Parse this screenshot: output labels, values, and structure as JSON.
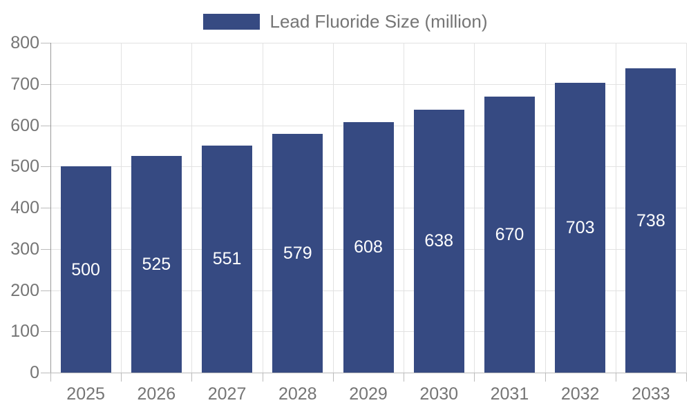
{
  "legend": {
    "label": "Lead Fluoride Size (million)"
  },
  "colors": {
    "bar": "#364A82",
    "bar_label": "#FFFFFF",
    "axis_text": "#757575",
    "grid": "#E2E2E2",
    "axis_line_y": "#999999",
    "axis_line_x": "#BBBBBB",
    "tick": "#BBBBBB",
    "background": "#FFFFFF"
  },
  "chart_data": {
    "type": "bar",
    "title": "",
    "categories": [
      "2025",
      "2026",
      "2027",
      "2028",
      "2029",
      "2030",
      "2031",
      "2032",
      "2033"
    ],
    "series": [
      {
        "name": "Lead Fluoride Size (million)",
        "values": [
          500,
          525,
          551,
          579,
          608,
          638,
          670,
          703,
          738
        ]
      }
    ],
    "xlabel": "",
    "ylabel": "",
    "ylim": [
      0,
      800
    ],
    "yticks": [
      0,
      100,
      200,
      300,
      400,
      500,
      600,
      700,
      800
    ],
    "grid": true,
    "legend_position": "top-center",
    "bar_labels_visible": true,
    "bar_label_position": "inside-center"
  }
}
